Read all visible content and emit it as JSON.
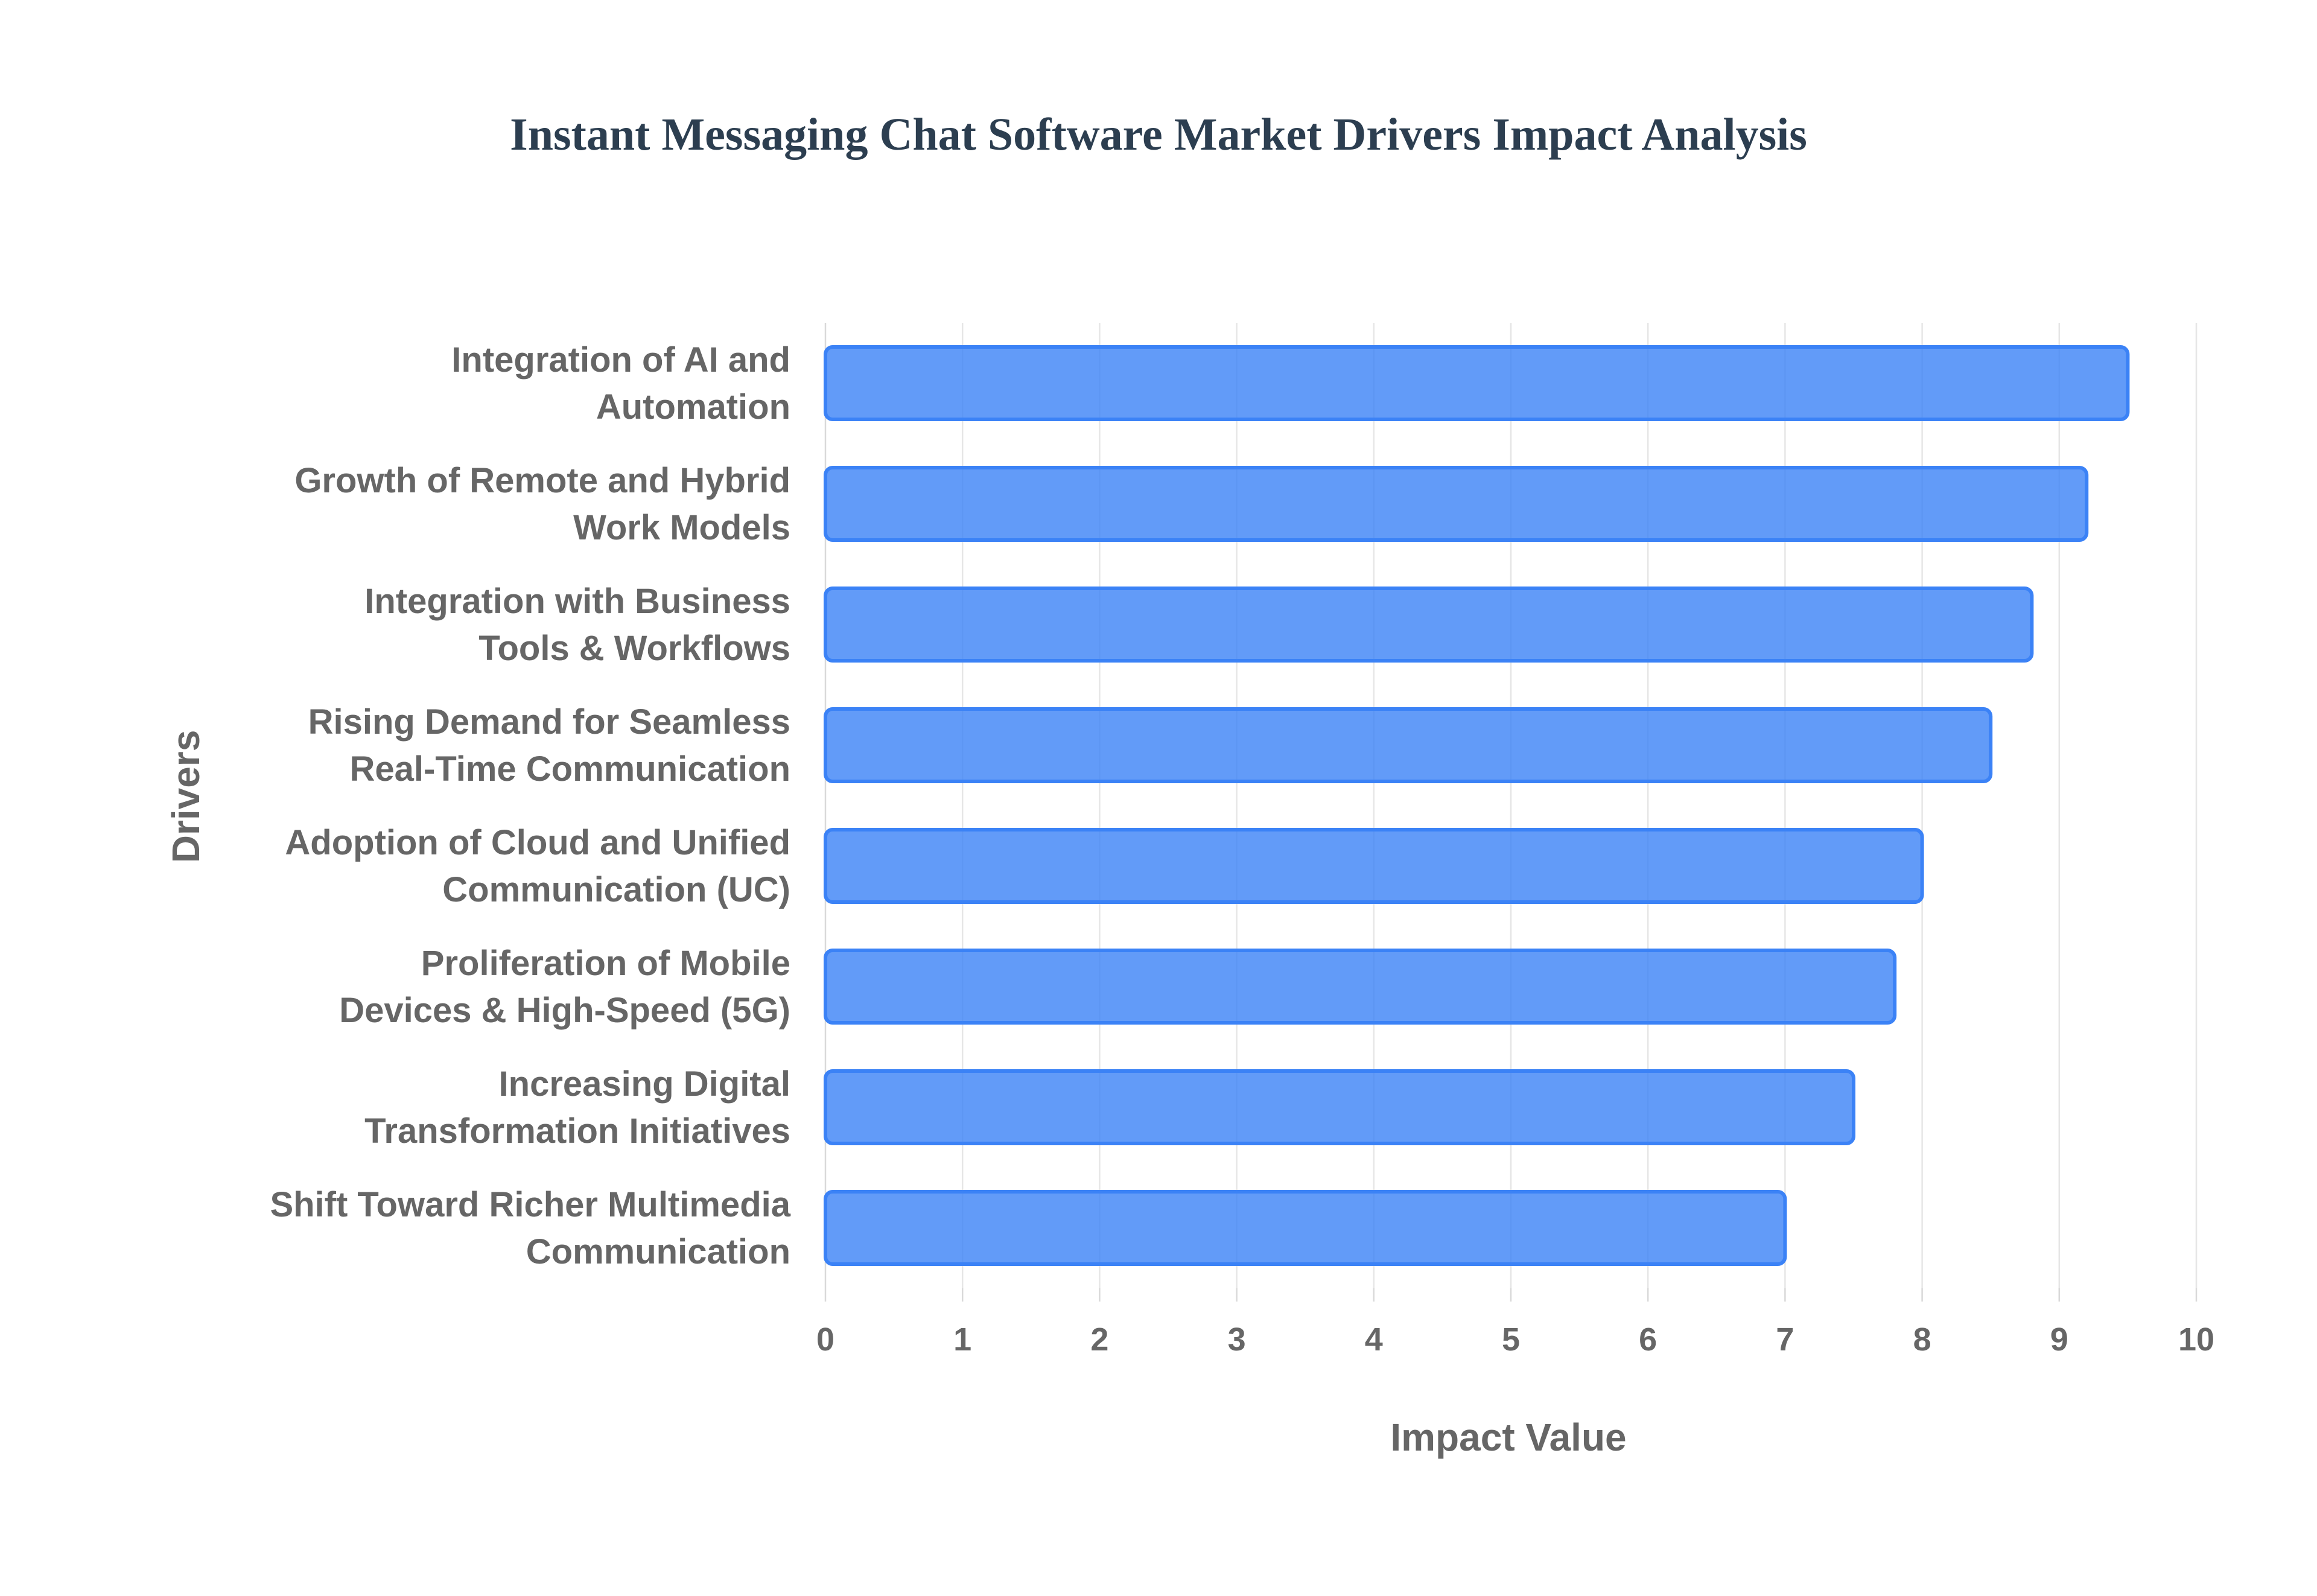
{
  "chart_data": {
    "type": "bar",
    "orientation": "horizontal",
    "title": "Instant Messaging Chat Software Market Drivers Impact Analysis",
    "xlabel": "Impact Value",
    "ylabel": "Drivers",
    "xlim": [
      0,
      10
    ],
    "x_ticks": [
      0,
      1,
      2,
      3,
      4,
      5,
      6,
      7,
      8,
      9,
      10
    ],
    "grid": true,
    "legend": "none",
    "bar_color": "#3b82f6",
    "title_color": "#2c3e50",
    "label_color": "#666666",
    "categories": [
      [
        "Integration of AI and",
        "Automation"
      ],
      [
        "Growth of Remote and Hybrid",
        "Work Models"
      ],
      [
        "Integration with Business",
        "Tools & Workflows"
      ],
      [
        "Rising Demand for Seamless",
        "Real-Time Communication"
      ],
      [
        "Adoption of Cloud and Unified",
        "Communication (UC)"
      ],
      [
        "Proliferation of Mobile",
        "Devices & High-Speed (5G)"
      ],
      [
        "Increasing Digital",
        "Transformation Initiatives"
      ],
      [
        "Shift Toward Richer Multimedia",
        "Communication"
      ]
    ],
    "values": [
      9.5,
      9.2,
      8.8,
      8.5,
      8.0,
      7.8,
      7.5,
      7.0
    ]
  }
}
